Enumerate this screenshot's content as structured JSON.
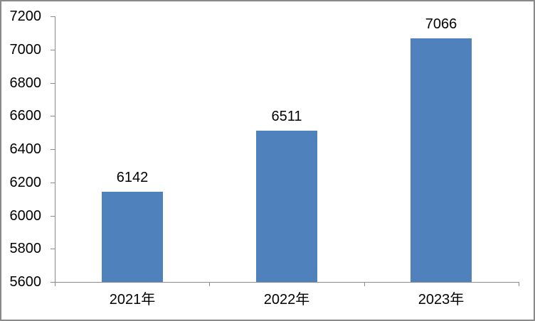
{
  "chart_data": {
    "type": "bar",
    "title": "",
    "categories": [
      "2021年",
      "2022年",
      "2023年"
    ],
    "values": [
      6142,
      6511,
      7066
    ],
    "data_labels": [
      "6142",
      "6511",
      "7066"
    ],
    "yticks": [
      5600,
      5800,
      6000,
      6200,
      6400,
      6600,
      6800,
      7000,
      7200
    ],
    "ylim": [
      5600,
      7200
    ],
    "ytick_step": 200,
    "xlabel": "",
    "ylabel": "",
    "grid": false,
    "legend": "none",
    "bar_color": "#4F81BD",
    "axis_color": "#8C8C8C",
    "label_color": "#000000",
    "frame_border_color": "#8A8A8A",
    "background_color": "#FFFFFF"
  }
}
